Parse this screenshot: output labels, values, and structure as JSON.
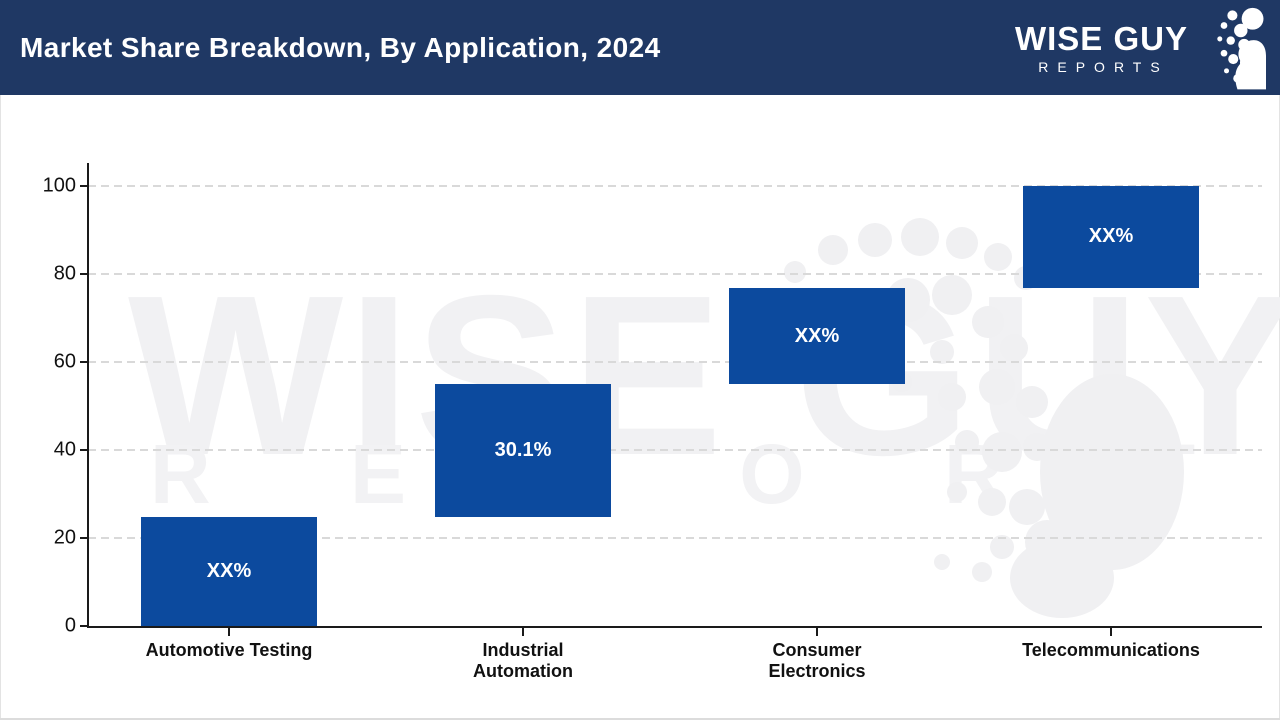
{
  "header": {
    "title": "Market Share Breakdown, By Application, 2024",
    "bg_color": "#1f3864",
    "text_color": "#ffffff",
    "logo": {
      "line1": "WISE GUY",
      "line2": "REPORTS"
    }
  },
  "watermark": {
    "line1": "WISE GUY",
    "line2": "R E P O R T S",
    "color1": "#f1f1f3",
    "color2": "#f2f2f4"
  },
  "chart_data": {
    "type": "bar",
    "subtype": "floating-segment-waterfall",
    "title": "Market Share Breakdown, By Application, 2024",
    "categories": [
      "Automotive Testing",
      "Industrial Automation",
      "Consumer Electronics",
      "Telecommunications"
    ],
    "category_lines": [
      [
        "Automotive Testing"
      ],
      [
        "Industrial",
        "Automation"
      ],
      [
        "Consumer",
        "Electronics"
      ],
      [
        "Telecommunications"
      ]
    ],
    "segments": [
      {
        "category": "Automotive Testing",
        "start": 0,
        "end": 24.8,
        "label": "XX%"
      },
      {
        "category": "Industrial Automation",
        "start": 24.8,
        "end": 54.9,
        "label": "30.1%"
      },
      {
        "category": "Consumer Electronics",
        "start": 54.9,
        "end": 76.9,
        "label": "XX%"
      },
      {
        "category": "Telecommunications",
        "start": 76.9,
        "end": 100,
        "label": "XX%"
      }
    ],
    "xlabel": "",
    "ylabel": "",
    "ylim": [
      0,
      100
    ],
    "yticks": [
      0,
      20,
      40,
      60,
      80,
      100
    ],
    "grid": "horizontal dashed",
    "legend": "none",
    "bar_color": "#0c4a9e",
    "bar_label_color": "#ffffff",
    "grid_color": "#d9d9d9",
    "axis_color": "#1a1a1a"
  }
}
